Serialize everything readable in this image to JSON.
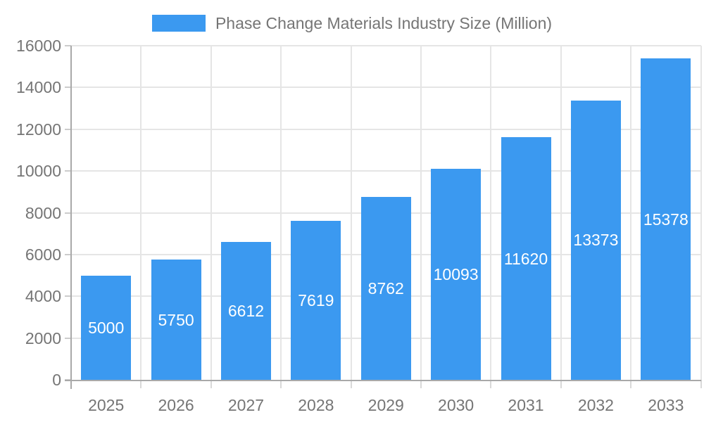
{
  "legend": {
    "label": "Phase Change Materials Industry Size (Million)"
  },
  "chart_data": {
    "type": "bar",
    "title": "Phase Change Materials Industry Size (Million)",
    "series_name": "Phase Change Materials Industry Size (Million)",
    "categories": [
      "2025",
      "2026",
      "2027",
      "2028",
      "2029",
      "2030",
      "2031",
      "2032",
      "2033"
    ],
    "values": [
      5000,
      5750,
      6612,
      7619,
      8762,
      10093,
      11620,
      13373,
      15378
    ],
    "xlabel": "",
    "ylabel": "",
    "ylim": [
      0,
      16000
    ],
    "yticks": [
      0,
      2000,
      4000,
      6000,
      8000,
      10000,
      12000,
      14000,
      16000
    ],
    "grid": true,
    "legend_position": "top",
    "colors": {
      "bar": "#3b99f0",
      "value_label": "#ffffff",
      "axis_text": "#757575",
      "gridline": "#e5e5e5",
      "axis_line": "#a9a9a9",
      "tick": "#cccccc",
      "bottom_tick": "#d9d9d9",
      "background": "#ffffff"
    }
  }
}
